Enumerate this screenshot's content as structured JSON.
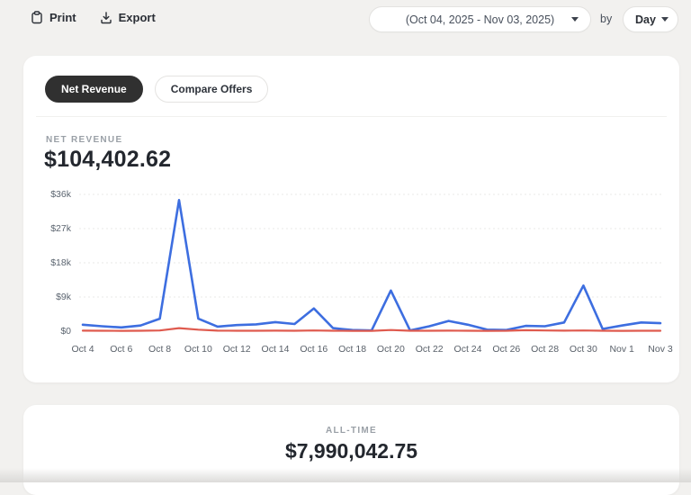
{
  "topbar": {
    "print_label": "Print",
    "export_label": "Export",
    "date_range_value": "(Oct 04, 2025 - Nov 03, 2025)",
    "by_label": "by",
    "granularity_value": "Day"
  },
  "revenue_card": {
    "tabs": [
      {
        "label": "Net Revenue",
        "active": true
      },
      {
        "label": "Compare Offers",
        "active": false
      }
    ],
    "metric_label": "NET REVENUE",
    "metric_value": "$104,402.62"
  },
  "alltime_card": {
    "label": "ALL-TIME",
    "value": "$7,990,042.75"
  },
  "colors": {
    "primary_line": "#3d6ee0",
    "secondary_line": "#df5a4e",
    "grid": "#e9e8e7",
    "active_tab": "#303030",
    "page_background": "#f2f1ef"
  },
  "chart_data": {
    "type": "line",
    "title": "Net Revenue",
    "x": [
      "Oct 4",
      "Oct 5",
      "Oct 6",
      "Oct 7",
      "Oct 8",
      "Oct 9",
      "Oct 10",
      "Oct 11",
      "Oct 12",
      "Oct 13",
      "Oct 14",
      "Oct 15",
      "Oct 16",
      "Oct 17",
      "Oct 18",
      "Oct 19",
      "Oct 20",
      "Oct 21",
      "Oct 22",
      "Oct 23",
      "Oct 24",
      "Oct 25",
      "Oct 26",
      "Oct 27",
      "Oct 28",
      "Oct 29",
      "Oct 30",
      "Oct 31",
      "Nov 1",
      "Nov 2",
      "Nov 3"
    ],
    "x_tick_every": 2,
    "y_ticks": {
      "values": [
        0,
        9000,
        18000,
        27000,
        36000
      ],
      "labels": [
        "$0",
        "$9k",
        "$18k",
        "$27k",
        "$36k"
      ]
    },
    "ylim": [
      0,
      36000
    ],
    "grid": "horizontal-dashed",
    "legend": "none",
    "series": [
      {
        "id": "net-revenue",
        "color": "#3d6ee0",
        "width": 2.6,
        "values": [
          1700,
          1300,
          1000,
          1500,
          3300,
          34500,
          3300,
          1200,
          1600,
          1800,
          2400,
          1900,
          6000,
          800,
          300,
          200,
          10700,
          200,
          1300,
          2700,
          1700,
          400,
          300,
          1400,
          1300,
          2300,
          12000,
          600,
          1500,
          2300,
          2100
        ]
      },
      {
        "id": "secondary",
        "color": "#df5a4e",
        "width": 2.2,
        "values": [
          150,
          120,
          100,
          120,
          200,
          800,
          400,
          150,
          120,
          130,
          150,
          130,
          200,
          120,
          100,
          100,
          300,
          120,
          130,
          150,
          130,
          100,
          120,
          250,
          200,
          150,
          200,
          120,
          100,
          120,
          130
        ]
      }
    ]
  }
}
